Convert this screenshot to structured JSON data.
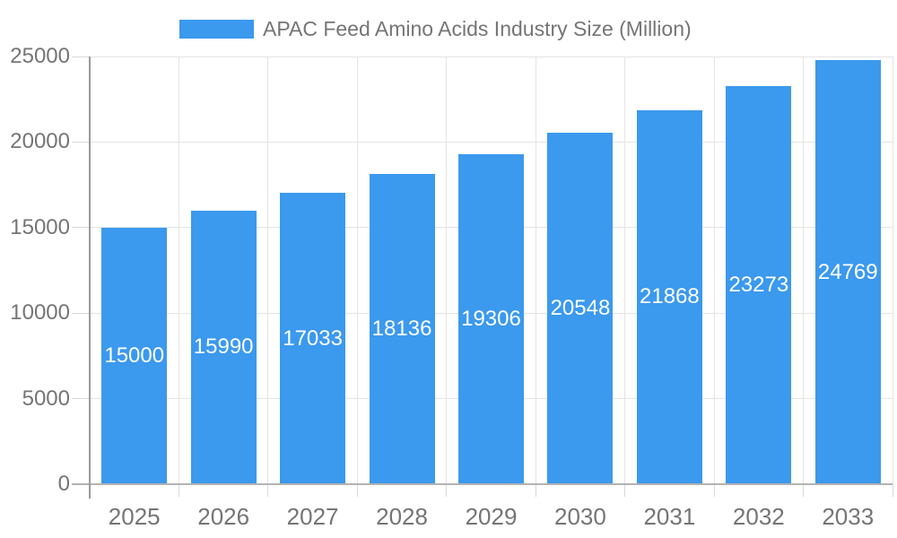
{
  "legend": {
    "label": "APAC Feed Amino Acids Industry Size (Million)"
  },
  "colors": {
    "bar": "#3B99EE",
    "grid": "#e4e4e4",
    "tick": "#d9d9d9",
    "axis_line": "#9a9a9a",
    "baseline": "#b3b3b3",
    "axis_text": "#757575",
    "value_label_text": "#ffffff",
    "background": "#ffffff"
  },
  "chart_data": {
    "type": "bar",
    "title": "APAC Feed Amino Acids Industry Size (Million)",
    "categories": [
      "2025",
      "2026",
      "2027",
      "2028",
      "2029",
      "2030",
      "2031",
      "2032",
      "2033"
    ],
    "values": [
      15000,
      15990,
      17033,
      18136,
      19306,
      20548,
      21868,
      23273,
      24769
    ],
    "xlabel": "",
    "ylabel": "",
    "ylim": [
      0,
      25000
    ],
    "yticks": [
      0,
      5000,
      10000,
      15000,
      20000,
      25000
    ],
    "grid": true,
    "legend_position": "top",
    "value_labels": "inside-middle-white"
  }
}
